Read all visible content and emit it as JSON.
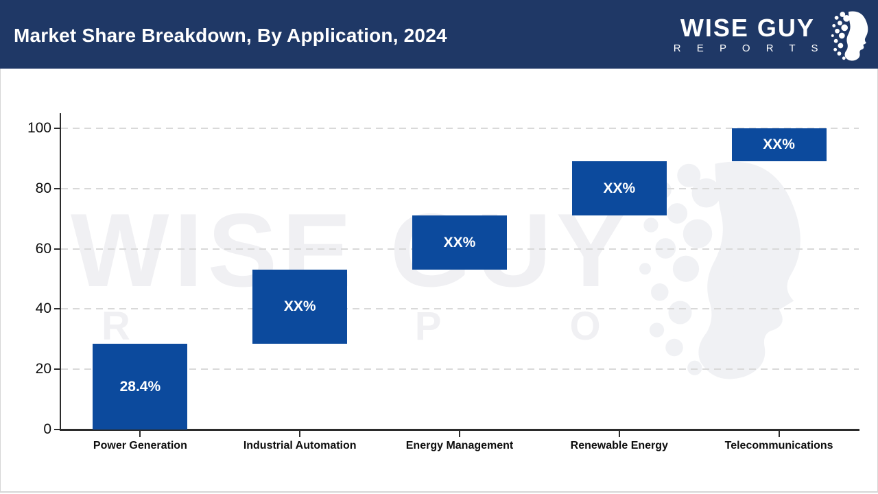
{
  "header": {
    "title": "Market Share Breakdown, By Application, 2024",
    "bg_color": "#1f3866"
  },
  "logo": {
    "line1": "WISE GUY",
    "line2": "R E P O R T S"
  },
  "watermark": {
    "line1": "WISE GUY",
    "line2": "R E P O R T S"
  },
  "chart_data": {
    "type": "bar",
    "subtype": "waterfall",
    "title": "Market Share Breakdown, By Application, 2024",
    "xlabel": "",
    "ylabel": "",
    "ylim": [
      0,
      100
    ],
    "y_ticks": [
      0,
      20,
      40,
      60,
      80,
      100
    ],
    "grid": "horizontal-dashed",
    "bar_color": "#0c4a9d",
    "value_label_color": "#ffffff",
    "categories": [
      "Power Generation",
      "Industrial Automation",
      "Energy Management",
      "Renewable Energy",
      "Telecommunications"
    ],
    "segments": [
      {
        "category": "Power Generation",
        "base": 0,
        "top": 28.4,
        "label": "28.4%"
      },
      {
        "category": "Industrial Automation",
        "base": 28.4,
        "top": 53,
        "label": "XX%"
      },
      {
        "category": "Energy Management",
        "base": 53,
        "top": 71,
        "label": "XX%"
      },
      {
        "category": "Renewable Energy",
        "base": 71,
        "top": 89,
        "label": "XX%"
      },
      {
        "category": "Telecommunications",
        "base": 89,
        "top": 100,
        "label": "XX%"
      }
    ]
  }
}
